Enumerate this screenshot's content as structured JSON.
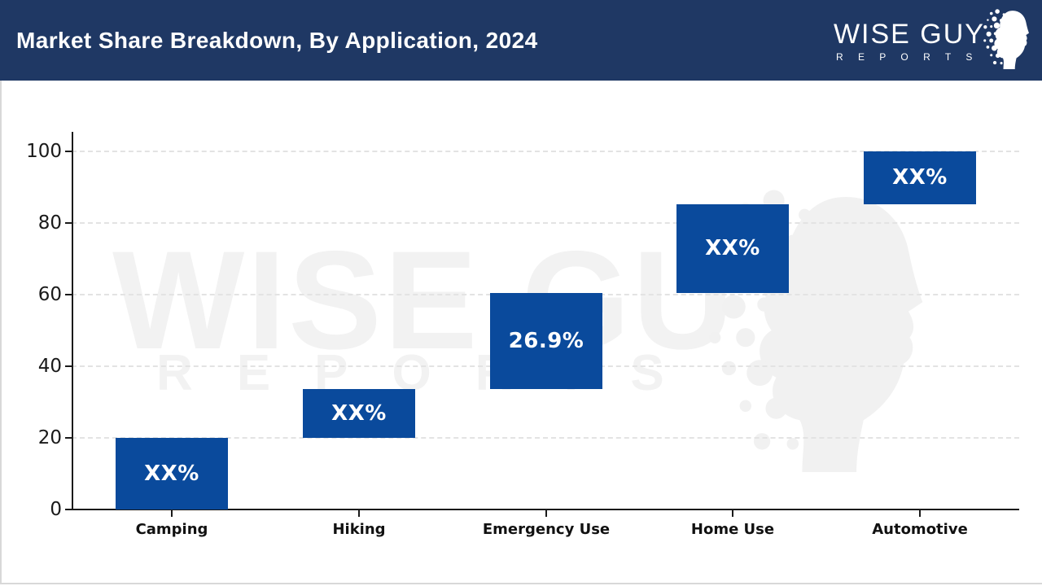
{
  "header": {
    "title": "Market Share Breakdown, By Application, 2024",
    "logo": {
      "line1": "WISE GUY",
      "line2": "R E P O R T S"
    }
  },
  "watermark": {
    "line1": "WISE GUY",
    "line2": "REPORTS"
  },
  "colors": {
    "header_bg": "#1f3864",
    "bar": "#0a4a9c",
    "grid": "#e3e3e3",
    "axis": "#1a1a1a",
    "watermark": "#f2f2f2"
  },
  "chart_data": {
    "type": "bar",
    "subtype": "waterfall",
    "title": "Market Share Breakdown, By Application, 2024",
    "categories": [
      "Camping",
      "Hiking",
      "Emergency Use",
      "Home Use",
      "Automotive"
    ],
    "segments": [
      {
        "category": "Camping",
        "start": 0,
        "end": 20,
        "label": "XX%"
      },
      {
        "category": "Hiking",
        "start": 20,
        "end": 33.5,
        "label": "XX%"
      },
      {
        "category": "Emergency Use",
        "start": 33.5,
        "end": 60.4,
        "label": "26.9%"
      },
      {
        "category": "Home Use",
        "start": 60.4,
        "end": 85.2,
        "label": "XX%"
      },
      {
        "category": "Automotive",
        "start": 85.2,
        "end": 100,
        "label": "XX%"
      }
    ],
    "yticks": [
      0,
      20,
      40,
      60,
      80,
      100
    ],
    "ylim": [
      0,
      105
    ],
    "xlabel": "",
    "ylabel": "",
    "grid": "horizontal-dashed",
    "legend": "none"
  }
}
